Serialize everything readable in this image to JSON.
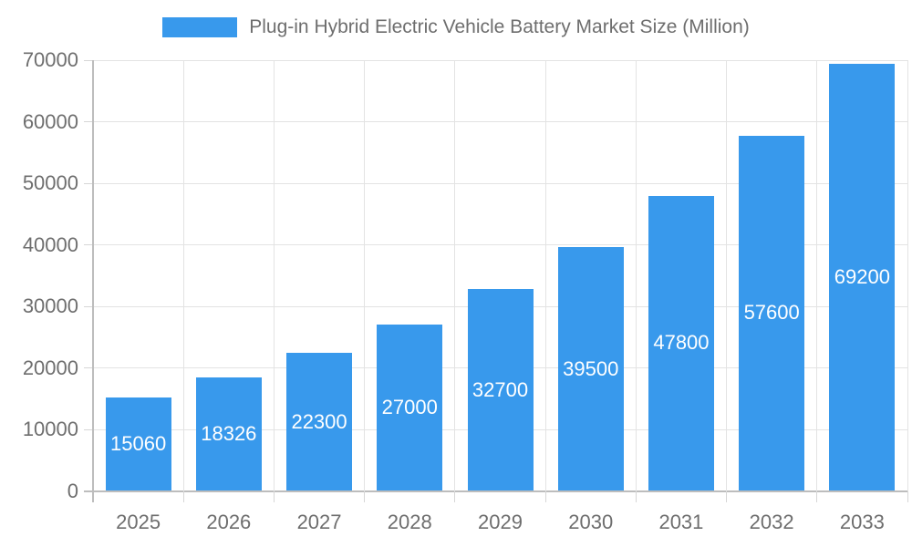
{
  "chart_data": {
    "type": "bar",
    "title": "",
    "legend": {
      "position": "top",
      "label": "Plug-in Hybrid Electric Vehicle Battery Market Size (Million)"
    },
    "categories": [
      "2025",
      "2026",
      "2027",
      "2028",
      "2029",
      "2030",
      "2031",
      "2032",
      "2033"
    ],
    "values": [
      15060,
      18326,
      22300,
      27000,
      32700,
      39500,
      47800,
      57600,
      69200
    ],
    "value_labels": [
      "15060",
      "18326",
      "22300",
      "27000",
      "32700",
      "39500",
      "47800",
      "57600",
      "69200"
    ],
    "value_labels_position": "inside-center",
    "xlabel": "",
    "ylabel": "",
    "ylim": [
      0,
      70000
    ],
    "ytick_step": 10000,
    "ytick_labels": [
      "0",
      "10000",
      "20000",
      "30000",
      "40000",
      "50000",
      "60000",
      "70000"
    ],
    "grid": true,
    "legend_position": "top"
  },
  "colors": {
    "bar": "#3899EC",
    "text": "#6e6e6e",
    "value_label_text": "#ffffff",
    "gridline": "#e3e3e3",
    "tick": "#d6d6d6",
    "axis_zero_line": "#bdbdbd",
    "background": "#ffffff"
  }
}
